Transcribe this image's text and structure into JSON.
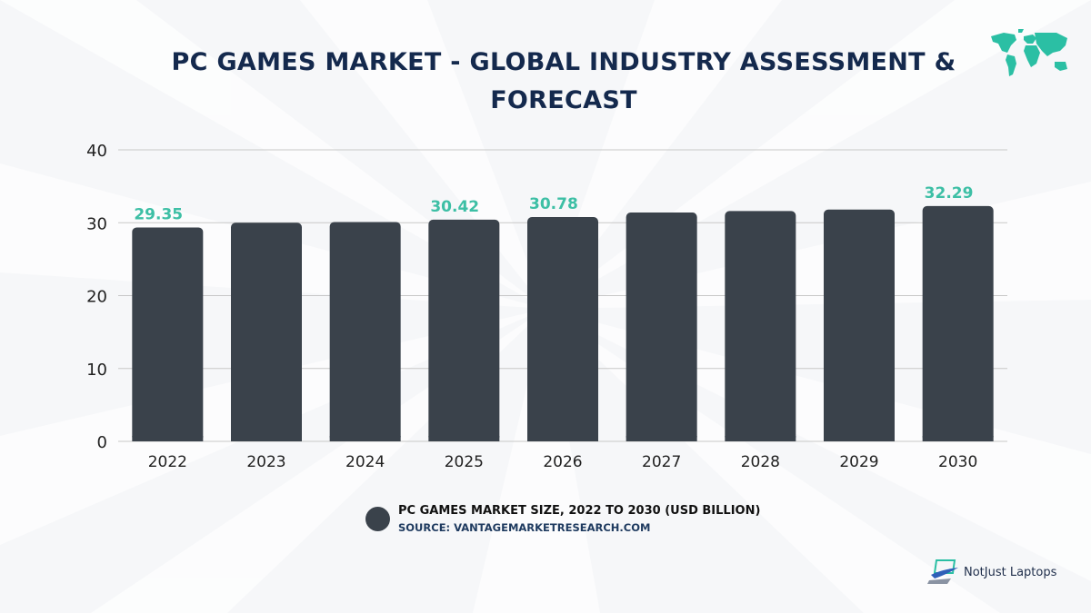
{
  "header": {
    "title": "PC GAMES MARKET - GLOBAL INDUSTRY ASSESSMENT & FORECAST",
    "map_icon": "world-map-icon"
  },
  "colors": {
    "bar": "#3a424b",
    "label": "#3dbfa5",
    "title": "#14294d",
    "grid": "#c8c8c8",
    "accent": "#2bbfa4"
  },
  "chart_data": {
    "type": "bar",
    "title": "PC GAMES MARKET - GLOBAL INDUSTRY ASSESSMENT & FORECAST",
    "xlabel": "",
    "ylabel": "",
    "categories": [
      "2022",
      "2023",
      "2024",
      "2025",
      "2026",
      "2027",
      "2028",
      "2029",
      "2030"
    ],
    "values": [
      29.35,
      30.0,
      30.1,
      30.42,
      30.78,
      31.4,
      31.6,
      31.8,
      32.29
    ],
    "data_labels": [
      "29.35",
      "",
      "",
      "30.42",
      "30.78",
      "",
      "",
      "",
      "32.29"
    ],
    "ylim": [
      0,
      40
    ],
    "yticks": [
      "0",
      "10",
      "20",
      "30",
      "40"
    ],
    "ytick_values": [
      0,
      10,
      20,
      30,
      40
    ],
    "grid": true,
    "legend": {
      "position": "bottom-center",
      "entries": [
        "PC GAMES MARKET SIZE, 2022 TO 2030 (USD BILLION)"
      ]
    }
  },
  "legend": {
    "title": "PC GAMES MARKET SIZE, 2022 TO 2030 (USD BILLION)",
    "source": "SOURCE: VANTAGEMARKETRESEARCH.COM"
  },
  "brand": {
    "name": "NotJust Laptops",
    "icon": "laptop-logo-icon"
  }
}
